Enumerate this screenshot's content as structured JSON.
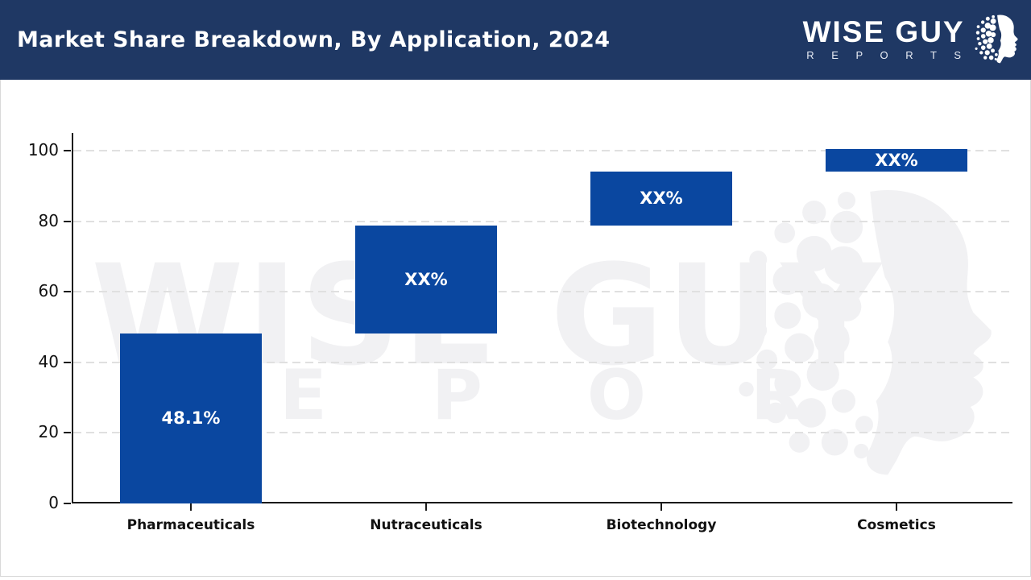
{
  "header": {
    "title": "Market Share Breakdown, By Application, 2024",
    "bg_color": "#1f3864",
    "logo": {
      "line1": "WISE GUY",
      "line2": "R E P O R T S"
    }
  },
  "watermark": {
    "line1": "WISE GUY",
    "line2": "R E P O R T S"
  },
  "chart_data": {
    "type": "bar",
    "variant": "waterfall",
    "title": "Market Share Breakdown, By Application, 2024",
    "categories": [
      "Pharmaceuticals",
      "Nutraceuticals",
      "Biotechnology",
      "Cosmetics"
    ],
    "segments": [
      {
        "category": "Pharmaceuticals",
        "start": 0,
        "end": 48.1,
        "label": "48.1%"
      },
      {
        "category": "Nutraceuticals",
        "start": 48.1,
        "end": 78.7,
        "label": "XX%"
      },
      {
        "category": "Biotechnology",
        "start": 78.7,
        "end": 94.0,
        "label": "XX%"
      },
      {
        "category": "Cosmetics",
        "start": 94.0,
        "end": 100.4,
        "label": "XX%"
      }
    ],
    "xlabel": "",
    "ylabel": "",
    "ylim": [
      0,
      105
    ],
    "yticks": [
      0,
      20,
      40,
      60,
      80,
      100
    ],
    "grid": "horizontal-dashed",
    "legend": "none",
    "bar_color": "#0a47a0",
    "bar_label_color": "#ffffff",
    "axis_color": "#1a1a1a",
    "gridline_color": "#e0e0e0"
  }
}
